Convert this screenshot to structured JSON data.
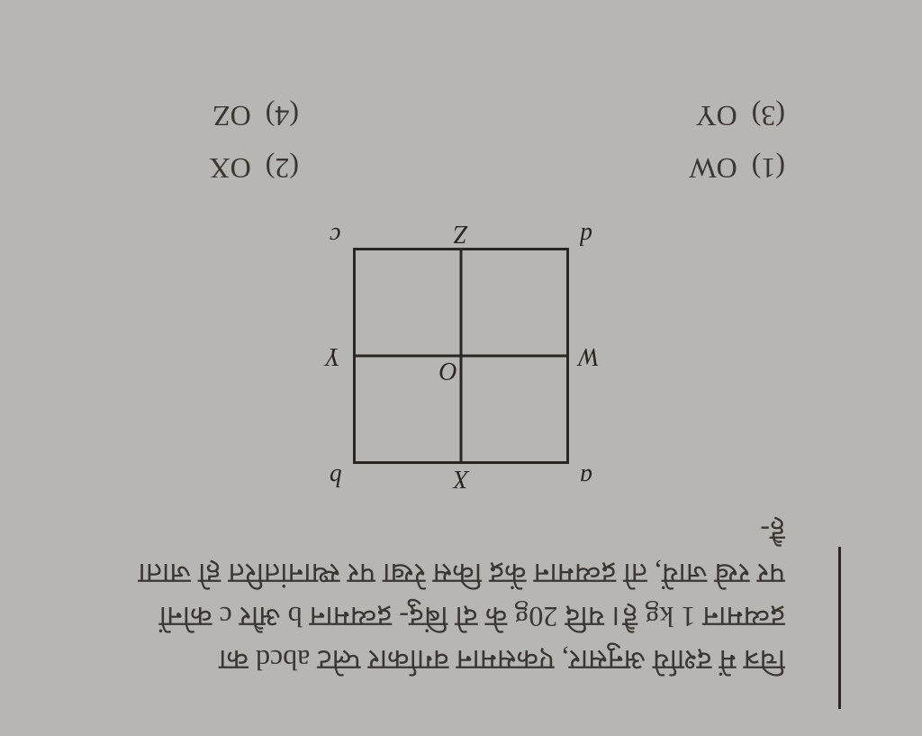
{
  "question": {
    "line1": "चित्र में दर्शाये अनुसार, एकसमान वर्गाकार प्लेट",
    "line2": "abcd का द्रव्यमान 1 kg है। यदि 20g के दो बिंदु-",
    "line3": "द्रव्यमान b और c कोनों पर रखे जायें, तो द्रव्यमान",
    "line4": "केंद्र किस रेखा पर स्थानांतरित हो जाता है-"
  },
  "diagram": {
    "labels": {
      "a": "a",
      "b": "b",
      "c": "c",
      "d": "d",
      "X": "X",
      "Y": "Y",
      "Z": "Z",
      "W": "W",
      "O": "O"
    },
    "border_color": "#2a2622",
    "background_color": "#b8b6b2"
  },
  "options": {
    "o1": {
      "num": "(1)",
      "label": "OW"
    },
    "o2": {
      "num": "(2)",
      "label": "OX"
    },
    "o3": {
      "num": "(3)",
      "label": "OY"
    },
    "o4": {
      "num": "(4)",
      "label": "OZ"
    }
  },
  "colors": {
    "page_bg": "#b8b6b2",
    "text": "#3a3632",
    "line": "#2a2622"
  },
  "fontsize": {
    "body": 32,
    "label": 28
  }
}
